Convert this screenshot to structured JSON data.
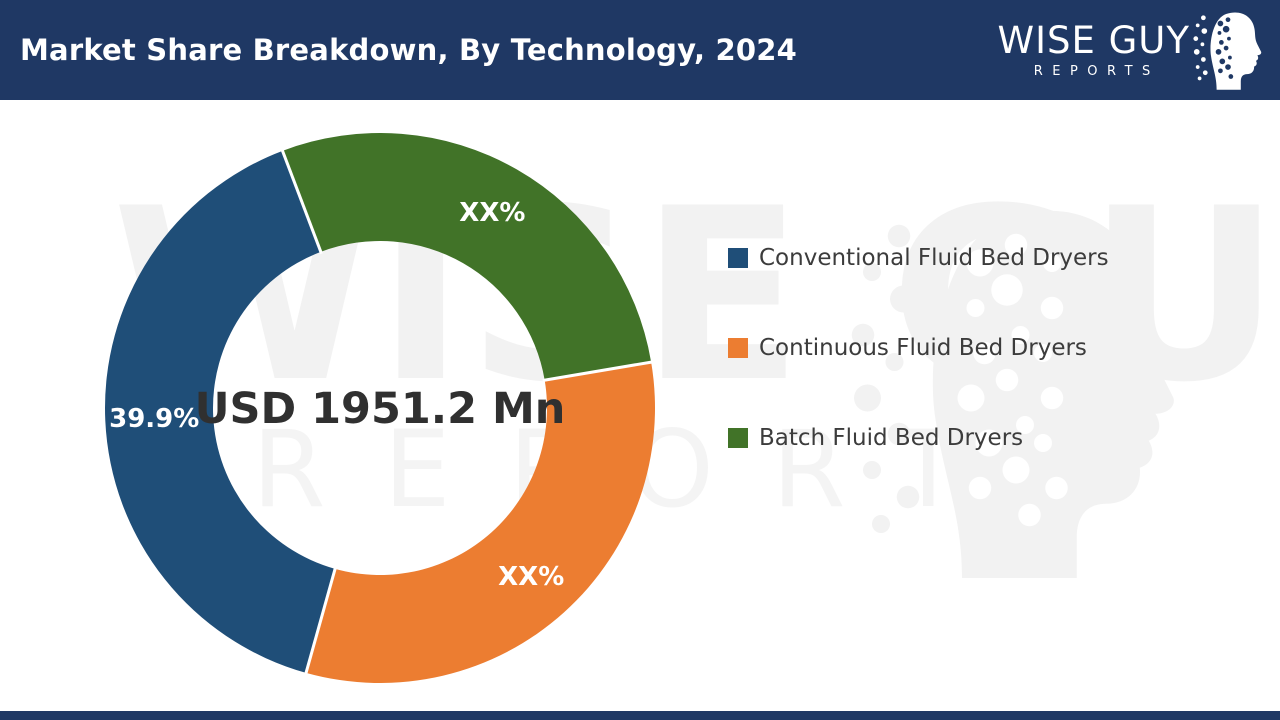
{
  "header": {
    "title": "Market Share Breakdown, By Technology, 2024",
    "bg_color": "#1F3864"
  },
  "logo": {
    "line1": "WISE GUY",
    "line2": "REPORTS"
  },
  "watermark": {
    "line1": "WISE GUY",
    "line2": "REPORTS"
  },
  "chart_data": {
    "type": "pie",
    "variant": "donut",
    "title": "Market Share Breakdown, By Technology, 2024",
    "center_label": "USD 1951.2 Mn",
    "start_angle_deg": 195.6,
    "outer_radius": 275,
    "inner_radius": 167,
    "label_radius": 226,
    "slices": [
      {
        "name": "Conventional Fluid Bed Dryers",
        "display_label": "39.9%",
        "value_pct": 39.9,
        "color": "#1F4E78"
      },
      {
        "name": "Batch Fluid Bed Dryers",
        "display_label": "XX%",
        "value_pct": 28.1,
        "color": "#417328"
      },
      {
        "name": "Continuous Fluid Bed Dryers",
        "display_label": "XX%",
        "value_pct": 32.0,
        "color": "#EC7D31"
      }
    ],
    "legend": [
      {
        "label": "Conventional Fluid Bed Dryers",
        "color": "#1F4E78"
      },
      {
        "label": "Continuous Fluid Bed Dryers",
        "color": "#EC7D31"
      },
      {
        "label": "Batch Fluid Bed Dryers",
        "color": "#417328"
      }
    ],
    "legend_position": "right",
    "slice_label_color": "#ffffff",
    "center_label_color": "#303030"
  }
}
